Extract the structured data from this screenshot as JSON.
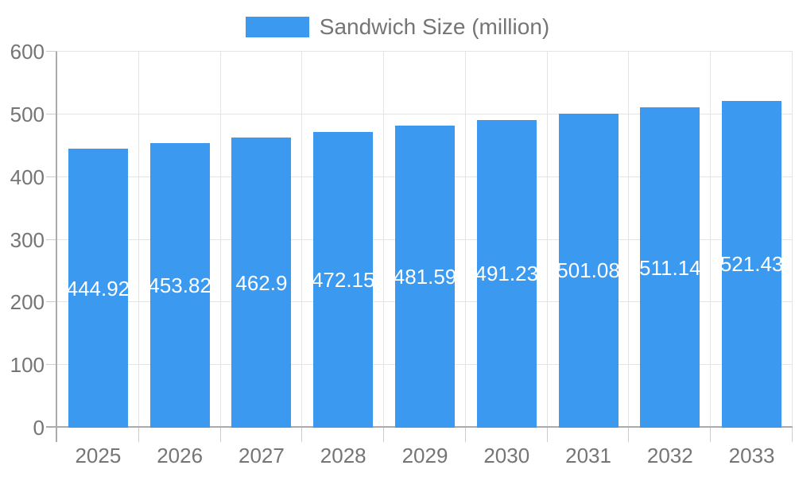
{
  "legend": {
    "label": "Sandwich Size (million)"
  },
  "colors": {
    "bar": "#3B99EF",
    "grid": "#E4E4E4",
    "axis": "#ABABAB",
    "tick": "#CCCCCC",
    "text": "#757575",
    "value_label": "#FFFFFF"
  },
  "chart_data": {
    "type": "bar",
    "title": "Sandwich Size (million)",
    "categories": [
      "2025",
      "2026",
      "2027",
      "2028",
      "2029",
      "2030",
      "2031",
      "2032",
      "2033"
    ],
    "values": [
      444.92,
      453.82,
      462.9,
      472.15,
      481.59,
      491.23,
      501.08,
      511.14,
      521.43
    ],
    "value_labels": [
      "444.92",
      "453.82",
      "462.9",
      "472.15",
      "481.59",
      "491.23",
      "501.08",
      "511.14",
      "521.43"
    ],
    "xlabel": "",
    "ylabel": "",
    "ylim": [
      0,
      600
    ],
    "yticks": [
      0,
      100,
      200,
      300,
      400,
      500,
      600
    ],
    "grid": true,
    "legend_position": "top-center",
    "value_label_position": "inside-center",
    "series": [
      {
        "name": "Sandwich Size (million)",
        "values": [
          444.92,
          453.82,
          462.9,
          472.15,
          481.59,
          491.23,
          501.08,
          511.14,
          521.43
        ]
      }
    ]
  }
}
